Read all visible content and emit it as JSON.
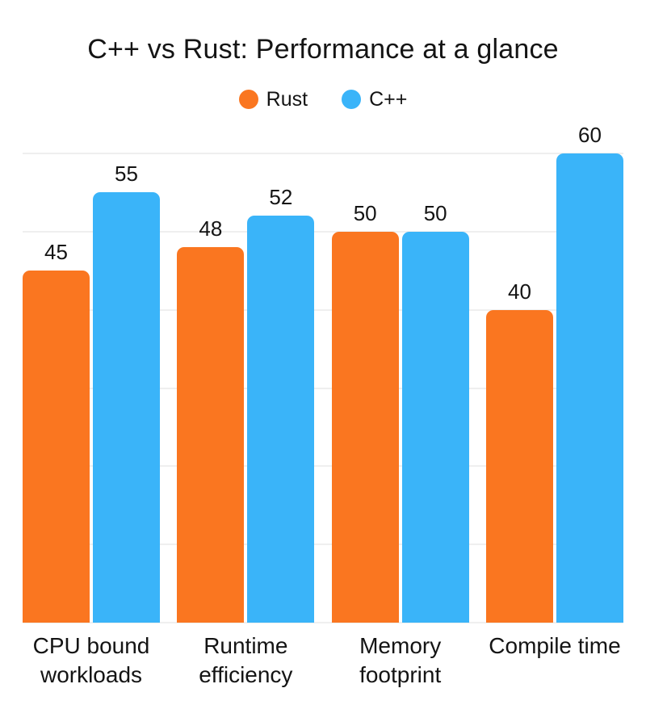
{
  "title": "C++ vs Rust: Performance at a glance",
  "chart_data": {
    "type": "bar",
    "title": "C++ vs Rust: Performance at a glance",
    "categories": [
      "CPU bound workloads",
      "Runtime efficiency",
      "Memory footprint",
      "Compile time"
    ],
    "series": [
      {
        "name": "Rust",
        "color": "#FA7620",
        "values": [
          45,
          48,
          50,
          40
        ]
      },
      {
        "name": "C++",
        "color": "#3AB4F9",
        "values": [
          55,
          52,
          50,
          60
        ]
      }
    ],
    "ylim": [
      0,
      60
    ],
    "gridline_interval": 10,
    "grid": "horizontal",
    "legend_position": "top",
    "data_labels": true,
    "colors": {
      "grid": "#EFEFEF",
      "text": "#141414",
      "background": "#FFFFFF"
    }
  }
}
